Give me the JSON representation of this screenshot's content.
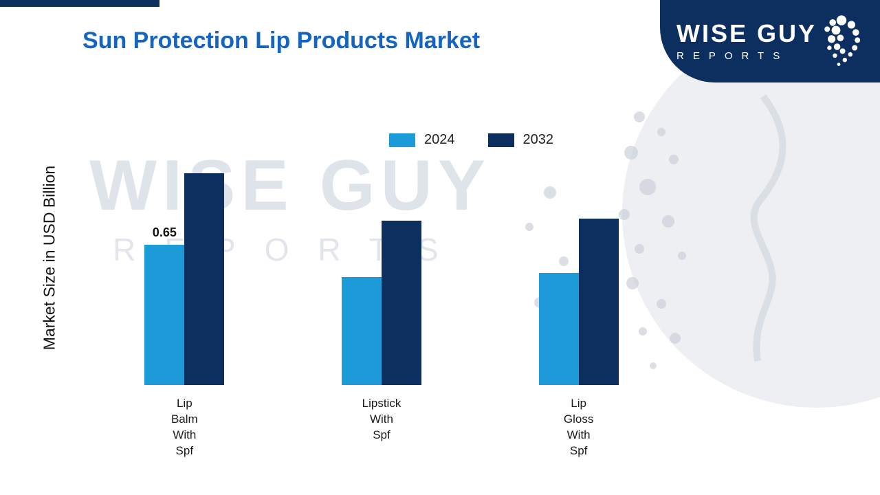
{
  "header": {
    "title": "Sun Protection Lip Products Market"
  },
  "logo": {
    "name_top": "WISE GUY",
    "name_bottom": "REPORTS"
  },
  "watermark": {
    "line1": "WISE GUY",
    "line2": "REPORTS"
  },
  "chart_data": {
    "type": "bar",
    "title": "Sun Protection Lip Products Market",
    "ylabel": "Market Size in USD Billion",
    "xlabel": "",
    "ylim": [
      0,
      1.05
    ],
    "grid": false,
    "legend_position": "top-right",
    "categories": [
      "Lip Balm With Spf",
      "Lipstick With Spf",
      "Lip Gloss With Spf"
    ],
    "series": [
      {
        "name": "2024",
        "color": "#1d9bd8",
        "values": [
          0.65,
          0.5,
          0.52
        ],
        "labels": [
          "0.65",
          "",
          ""
        ]
      },
      {
        "name": "2032",
        "color": "#0d2f5f",
        "values": [
          0.98,
          0.76,
          0.77
        ],
        "labels": [
          "",
          "",
          ""
        ]
      }
    ]
  },
  "colors": {
    "title": "#1565c0",
    "accent_light_blue": "#1d9bd8",
    "accent_navy": "#0d2f5f",
    "watermark_gray": "#dfe3ea"
  }
}
